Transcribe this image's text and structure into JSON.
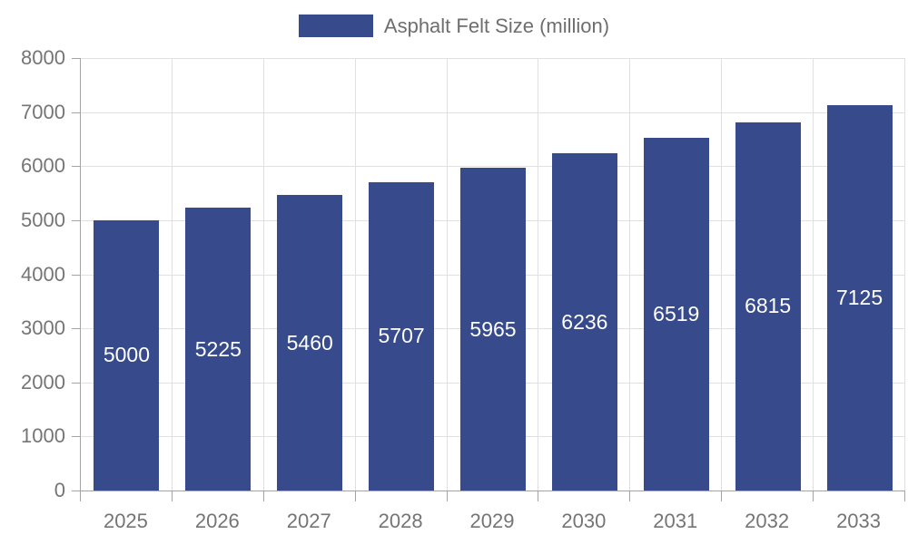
{
  "chart_data": {
    "type": "bar",
    "legend": "Asphalt Felt Size (million)",
    "categories": [
      "2025",
      "2026",
      "2027",
      "2028",
      "2029",
      "2030",
      "2031",
      "2032",
      "2033"
    ],
    "values": [
      5000,
      5225,
      5460,
      5707,
      5965,
      6236,
      6519,
      6815,
      7125
    ],
    "value_labels": [
      "5000",
      "5225",
      "5460",
      "5707",
      "5965",
      "6236",
      "6519",
      "6815",
      "7125"
    ],
    "ytick_labels": [
      "0",
      "1000",
      "2000",
      "3000",
      "4000",
      "5000",
      "6000",
      "7000",
      "8000"
    ],
    "ylim": [
      0,
      8000
    ],
    "grid": true,
    "legend_position": "top-center",
    "colors": {
      "bar": "#374B8C",
      "value_label": "#ffffff",
      "grid": "#e0e0e0",
      "axis": "#a3a3a3",
      "tick_label": "#757575",
      "legend_text": "#6e6e6e",
      "background": "#ffffff"
    }
  }
}
